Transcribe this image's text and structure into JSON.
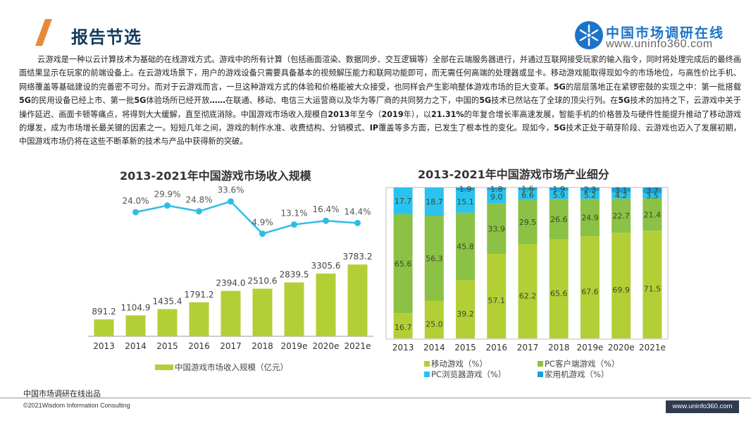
{
  "header": {
    "title": "报告节选",
    "accent_color": "#e98a3a",
    "logo": {
      "icon": "snowflake-logo-icon",
      "name": "中国市场调研在线",
      "url": "www.uninfo360.com",
      "color": "#1c74c9"
    }
  },
  "paragraph": [
    {
      "t": "云游戏是一种以云计算技术为基础的在线游戏方式。游戏中的所有计算（包括画面渲染、数据同步、交互逻辑等）全部在云端服务器进行，并通过互联网接受玩家的输入指令，同时将处理完成后的最终画面结果显示在玩家的前端设备上。在云游戏场景下，用户的游戏设备只需要具备基本的视频解压能力和联网功能即可，而无需任何高端的处理器或显卡。移动游戏能取得现如今的市场地位，与高性价比手机、网络覆盖等基础建设的完善密不可分。而对于云游戏而言，一旦这种游戏方式的体验和价格能被大众接受，也同样会产生影响整体游戏市场的巨大变革。",
      "b": false
    },
    {
      "t": "5G",
      "b": true
    },
    {
      "t": "的层层落地正在紧锣密鼓的实现之中：第一批搭载",
      "b": false
    },
    {
      "t": "5G",
      "b": true
    },
    {
      "t": "的民用设备已经上市、第一批",
      "b": false
    },
    {
      "t": "5G",
      "b": true
    },
    {
      "t": "体验场所已经开放",
      "b": false
    },
    {
      "t": "……",
      "b": true
    },
    {
      "t": "在联通、移动、电信三大运营商以及华为等厂商的共同努力之下，中国的",
      "b": false
    },
    {
      "t": "5G",
      "b": true
    },
    {
      "t": "技术已然站在了全球的顶尖行列。在",
      "b": false
    },
    {
      "t": "5G",
      "b": true
    },
    {
      "t": "技术的加持之下，云游戏中关于操作延迟、画面卡顿等痛点，将得到大大缓解，直至彻底消除。中国游戏市场收入规模自",
      "b": false
    },
    {
      "t": "2013",
      "b": true
    },
    {
      "t": "年至今（",
      "b": false
    },
    {
      "t": "2019",
      "b": true
    },
    {
      "t": "年），以",
      "b": false
    },
    {
      "t": "21.31%",
      "b": true
    },
    {
      "t": "的年复合增长率高速发展，智能手机的价格普及与硬件性能提升推动了移动游戏的爆发，成为市场增长最关键的因素之一。短短几年之间，游戏的制作水准、收费结构、分销模式、",
      "b": false
    },
    {
      "t": "IP",
      "b": true
    },
    {
      "t": "覆盖等多方面，已发生了根本性的变化。现如今，",
      "b": false
    },
    {
      "t": "5G",
      "b": true
    },
    {
      "t": "技术正处于萌芽阶段、云游戏也迈入了发展初期，中国游戏市场仍将在这些不断革新的技术与产品中获得新的突破。",
      "b": false
    }
  ],
  "chart_data": [
    {
      "type": "bar",
      "title": "2013-2021年中国游戏市场收入规模",
      "categories": [
        "2013",
        "2014",
        "2015",
        "2016",
        "2017",
        "2018",
        "2019e",
        "2020e",
        "2021e"
      ],
      "series": [
        {
          "name": "中国游戏市场收入规模（亿元）",
          "kind": "bar",
          "color": "#b3cf36",
          "values": [
            891.2,
            1104.9,
            1435.4,
            1791.2,
            2394.0,
            2510.6,
            2839.5,
            3305.6,
            3783.2
          ],
          "labels": [
            "891.2",
            "1104.9",
            "1435.4",
            "1791.2",
            "2394.0",
            "2510.6",
            "2839.5",
            "3305.6",
            "3783.2"
          ]
        },
        {
          "name": "增长率",
          "kind": "line",
          "color": "#2fbde8",
          "values": [
            24.0,
            29.9,
            24.8,
            33.6,
            4.9,
            13.1,
            16.4,
            14.4
          ],
          "labels": [
            "24.0%",
            "29.9%",
            "24.8%",
            "33.6%",
            "4.9%",
            "13.1%",
            "16.4%",
            "14.4%"
          ],
          "x_categories": [
            "2014",
            "2015",
            "2016",
            "2017",
            "2018",
            "2019e",
            "2020e",
            "2021e"
          ]
        }
      ],
      "ylim": [
        0,
        4000
      ],
      "xlabel": "",
      "ylabel": "",
      "grid": false,
      "legend": {
        "position": "bottom",
        "entries": [
          "中国游戏市场收入规模（亿元）"
        ]
      }
    },
    {
      "type": "bar",
      "stacked": true,
      "title": "2013-2021年中国游戏市场产业细分",
      "categories": [
        "2013",
        "2014",
        "2015",
        "2016",
        "2017",
        "2018",
        "2019e",
        "2020e",
        "2021e"
      ],
      "series": [
        {
          "name": "移动游戏（%）",
          "color": "#b3cf36",
          "values": [
            16.7,
            25.0,
            39.2,
            57.1,
            62.2,
            65.6,
            67.6,
            69.9,
            71.5
          ]
        },
        {
          "name": "PC客户端游戏（%）",
          "color": "#8bc144",
          "values": [
            65.6,
            56.3,
            45.8,
            33.9,
            29.5,
            26.6,
            24.9,
            22.7,
            21.4
          ]
        },
        {
          "name": "PC浏览器游戏（%）",
          "color": "#2bc3ee",
          "values": [
            17.7,
            18.7,
            15.1,
            9.0,
            6.6,
            5.9,
            5.2,
            4.2,
            3.5
          ]
        },
        {
          "name": "家用机游戏（%）",
          "color": "#1a9fd6",
          "values": [
            null,
            null,
            1.9,
            1.8,
            1.6,
            1.9,
            2.3,
            3.1,
            3.7
          ]
        }
      ],
      "ylim": [
        0,
        100
      ],
      "xlabel": "",
      "ylabel": "",
      "grid": false,
      "legend": {
        "position": "bottom",
        "entries": [
          "移动游戏（%）",
          "PC客户端游戏（%）",
          "PC浏览器游戏（%）",
          "家用机游戏（%）"
        ]
      }
    }
  ],
  "footer": {
    "producer": "中国市场调研在线出品",
    "copyright": "©2021Wisdom Information Consulting",
    "url_badge": "www.uninfo360.com"
  }
}
